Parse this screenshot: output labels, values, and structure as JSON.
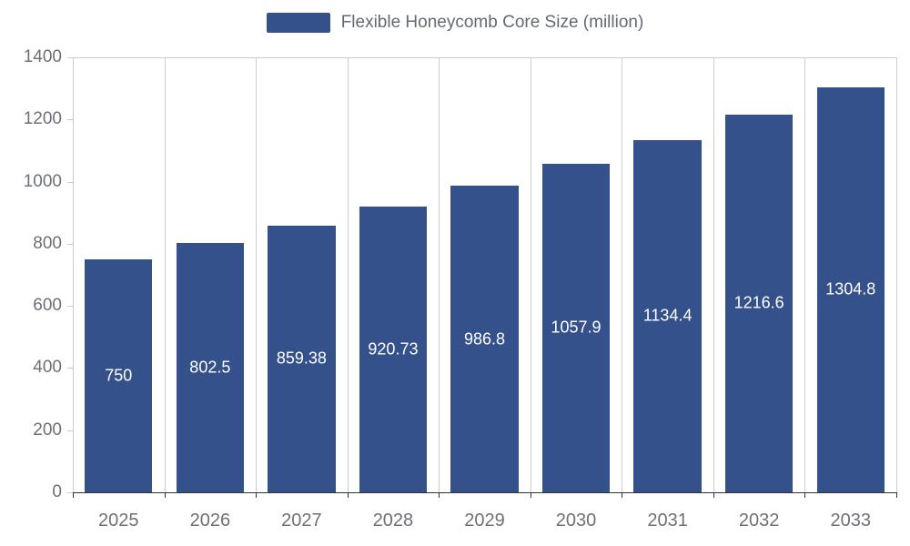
{
  "legend": {
    "label": "Flexible Honeycomb Core Size (million)"
  },
  "colors": {
    "bar": "#34518c",
    "bar_value_text": "#ffffff",
    "axis_text": "#6E7079",
    "legend_text": "#646a73",
    "grid_line": "#cccccc",
    "axis_line": "#333333",
    "background": "#ffffff"
  },
  "chart_data": {
    "type": "bar",
    "title": "Flexible Honeycomb Core Size (million)",
    "categories": [
      "2025",
      "2026",
      "2027",
      "2028",
      "2029",
      "2030",
      "2031",
      "2032",
      "2033"
    ],
    "values": [
      750,
      802.5,
      859.38,
      920.73,
      986.8,
      1057.9,
      1134.4,
      1216.6,
      1304.8
    ],
    "value_labels": [
      "750",
      "802.5",
      "859.38",
      "920.73",
      "986.8",
      "1057.9",
      "1134.4",
      "1216.6",
      "1304.8"
    ],
    "xlabel": "",
    "ylabel": "",
    "ylim": [
      0,
      1400
    ],
    "yticks": [
      0,
      200,
      400,
      600,
      800,
      1000,
      1200,
      1400
    ],
    "grid": "vertical-only",
    "legend_position": "top-center",
    "value_label_position": "inside-center"
  }
}
